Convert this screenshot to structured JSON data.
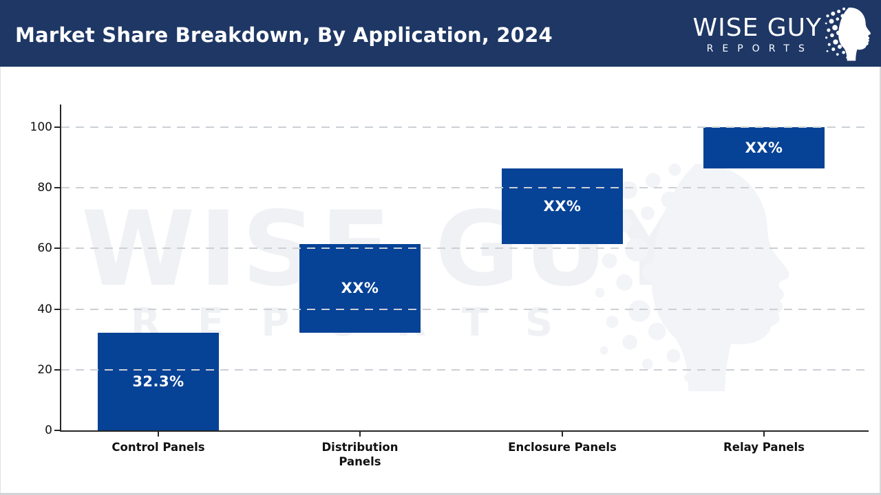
{
  "header": {
    "title": "Market Share Breakdown, By Application, 2024",
    "bg_color": "#1e3765",
    "logo": {
      "line1": "WISE GUY",
      "line2": "REPORTS"
    }
  },
  "watermark": {
    "line1": "WISE GUY",
    "line2": "REPORTS"
  },
  "chart_data": {
    "type": "bar",
    "variant": "waterfall",
    "title": "Market Share Breakdown, By Application, 2024",
    "categories": [
      "Control Panels",
      "Distribution Panels",
      "Enclosure Panels",
      "Relay Panels"
    ],
    "category_label_lines": [
      [
        "Control Panels"
      ],
      [
        "Distribution",
        "Panels"
      ],
      [
        "Enclosure Panels"
      ],
      [
        "Relay Panels"
      ]
    ],
    "segments": [
      {
        "category": "Control Panels",
        "start": 0,
        "end": 32.3,
        "label": "32.3%"
      },
      {
        "category": "Distribution Panels",
        "start": 32.3,
        "end": 61.5,
        "label": "XX%"
      },
      {
        "category": "Enclosure Panels",
        "start": 61.5,
        "end": 86.4,
        "label": "XX%"
      },
      {
        "category": "Relay Panels",
        "start": 86.4,
        "end": 100,
        "label": "XX%"
      }
    ],
    "y_ticks": [
      0,
      20,
      40,
      60,
      80,
      100
    ],
    "ylim": [
      0,
      105
    ],
    "xlabel": "",
    "ylabel": "",
    "grid": "horizontal dashed",
    "legend": false,
    "bar_color": "#064296",
    "bar_label_color": "#ffffff",
    "axis_color": "#262626"
  }
}
